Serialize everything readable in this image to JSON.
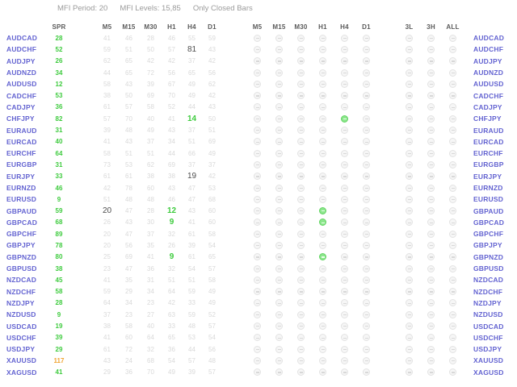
{
  "topbar": {
    "period_label": "MFI Period: 20",
    "levels_label": "MFI Levels: 15,85",
    "mode_label": "Only Closed Bars"
  },
  "columns": {
    "spr": "SPR",
    "timeframes": [
      "M5",
      "M15",
      "M30",
      "H1",
      "H4",
      "D1"
    ],
    "signal_timeframes": [
      "M5",
      "M15",
      "M30",
      "H1",
      "H4",
      "D1"
    ],
    "extra": [
      "3L",
      "3H",
      "ALL"
    ]
  },
  "colors": {
    "green": "#3ecb3e",
    "orange": "#f0a432",
    "pair_blue": "#6363d1",
    "dim_value": "#d9d9d9",
    "dark_value": "#4d4d4d"
  },
  "rows": [
    {
      "pair": "AUDCAD",
      "spr": "28",
      "values": [
        "41",
        "46",
        "28",
        "46",
        "55",
        "59"
      ]
    },
    {
      "pair": "AUDCHF",
      "spr": "52",
      "values": [
        "59",
        "51",
        "50",
        "57",
        "81",
        "43"
      ],
      "hl": {
        "4": "dark"
      }
    },
    {
      "pair": "AUDJPY",
      "spr": "26",
      "values": [
        "62",
        "65",
        "42",
        "42",
        "37",
        "42"
      ]
    },
    {
      "pair": "AUDNZD",
      "spr": "34",
      "values": [
        "44",
        "65",
        "72",
        "56",
        "65",
        "56"
      ]
    },
    {
      "pair": "AUDUSD",
      "spr": "12",
      "values": [
        "58",
        "43",
        "39",
        "67",
        "49",
        "62"
      ]
    },
    {
      "pair": "CADCHF",
      "spr": "53",
      "values": [
        "38",
        "50",
        "69",
        "70",
        "49",
        "42"
      ]
    },
    {
      "pair": "CADJPY",
      "spr": "36",
      "values": [
        "61",
        "57",
        "58",
        "52",
        "44",
        "43"
      ]
    },
    {
      "pair": "CHFJPY",
      "spr": "82",
      "values": [
        "57",
        "70",
        "40",
        "41",
        "14",
        "50"
      ],
      "hl": {
        "4": "green"
      },
      "gc": [
        4
      ]
    },
    {
      "pair": "EURAUD",
      "spr": "31",
      "values": [
        "39",
        "48",
        "49",
        "43",
        "37",
        "51"
      ]
    },
    {
      "pair": "EURCAD",
      "spr": "40",
      "values": [
        "41",
        "43",
        "37",
        "34",
        "51",
        "69"
      ]
    },
    {
      "pair": "EURCHF",
      "spr": "64",
      "values": [
        "58",
        "51",
        "51",
        "44",
        "66",
        "49"
      ]
    },
    {
      "pair": "EURGBP",
      "spr": "31",
      "values": [
        "73",
        "53",
        "62",
        "69",
        "37",
        "37"
      ]
    },
    {
      "pair": "EURJPY",
      "spr": "33",
      "values": [
        "61",
        "61",
        "38",
        "38",
        "19",
        "42"
      ],
      "hl": {
        "4": "dark"
      }
    },
    {
      "pair": "EURNZD",
      "spr": "46",
      "values": [
        "42",
        "78",
        "60",
        "43",
        "47",
        "53"
      ]
    },
    {
      "pair": "EURUSD",
      "spr": "9",
      "values": [
        "51",
        "48",
        "48",
        "46",
        "47",
        "68"
      ]
    },
    {
      "pair": "GBPAUD",
      "spr": "59",
      "values": [
        "20",
        "47",
        "28",
        "12",
        "43",
        "60"
      ],
      "hl": {
        "0": "dark",
        "3": "green"
      },
      "gc": [
        3
      ]
    },
    {
      "pair": "GBPCAD",
      "spr": "68",
      "values": [
        "26",
        "43",
        "30",
        "9",
        "41",
        "60"
      ],
      "hl": {
        "3": "green"
      },
      "gc": [
        3
      ]
    },
    {
      "pair": "GBPCHF",
      "spr": "89",
      "values": [
        "20",
        "47",
        "37",
        "32",
        "61",
        "58"
      ]
    },
    {
      "pair": "GBPJPY",
      "spr": "78",
      "values": [
        "20",
        "56",
        "35",
        "26",
        "39",
        "54"
      ]
    },
    {
      "pair": "GBPNZD",
      "spr": "80",
      "values": [
        "25",
        "69",
        "41",
        "9",
        "61",
        "65"
      ],
      "hl": {
        "3": "green"
      },
      "gc": [
        3
      ]
    },
    {
      "pair": "GBPUSD",
      "spr": "38",
      "values": [
        "23",
        "47",
        "36",
        "32",
        "54",
        "57"
      ]
    },
    {
      "pair": "NZDCAD",
      "spr": "45",
      "values": [
        "41",
        "35",
        "31",
        "51",
        "51",
        "58"
      ]
    },
    {
      "pair": "NZDCHF",
      "spr": "58",
      "values": [
        "59",
        "29",
        "34",
        "64",
        "59",
        "49"
      ]
    },
    {
      "pair": "NZDJPY",
      "spr": "28",
      "values": [
        "64",
        "34",
        "23",
        "42",
        "33",
        "49"
      ]
    },
    {
      "pair": "NZDUSD",
      "spr": "9",
      "values": [
        "37",
        "23",
        "27",
        "63",
        "59",
        "52"
      ]
    },
    {
      "pair": "USDCAD",
      "spr": "19",
      "values": [
        "38",
        "58",
        "40",
        "33",
        "48",
        "57"
      ]
    },
    {
      "pair": "USDCHF",
      "spr": "39",
      "values": [
        "41",
        "60",
        "64",
        "65",
        "53",
        "54"
      ]
    },
    {
      "pair": "USDJPY",
      "spr": "29",
      "values": [
        "61",
        "72",
        "32",
        "36",
        "44",
        "56"
      ]
    },
    {
      "pair": "XAUUSD",
      "spr": "117",
      "spr_state": "orange",
      "values": [
        "43",
        "24",
        "68",
        "54",
        "57",
        "48"
      ]
    },
    {
      "pair": "XAGUSD",
      "spr": "41",
      "values": [
        "29",
        "36",
        "70",
        "49",
        "39",
        "57"
      ]
    }
  ]
}
